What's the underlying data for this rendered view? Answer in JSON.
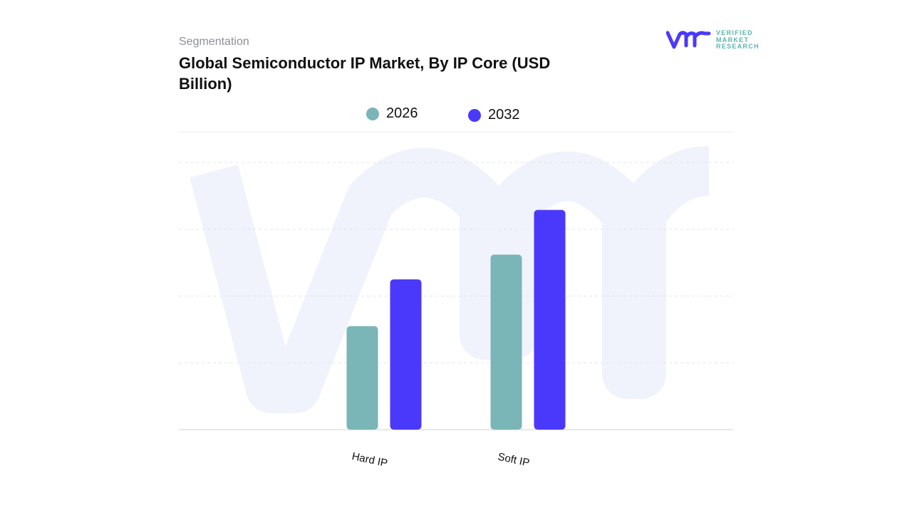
{
  "header": {
    "segment_label": "Segmentation",
    "title": "Global Semiconductor IP Market, By IP Core (USD Billion)"
  },
  "logo": {
    "lines": [
      "VERIFIED",
      "MARKET",
      "RESEARCH"
    ],
    "mark": "vmr"
  },
  "colors": {
    "series_2026": "#7ab5b8",
    "series_2032": "#4b39fb",
    "watermark": "#f0f3fb",
    "grid": "#e3e5ea"
  },
  "chart_data": {
    "type": "bar",
    "title": "Global Semiconductor IP Market, By IP Core (USD Billion)",
    "categories": [
      "Hard IP",
      "Soft IP"
    ],
    "series": [
      {
        "name": "2026",
        "values": [
          1.55,
          2.62
        ]
      },
      {
        "name": "2032",
        "values": [
          2.25,
          3.29
        ]
      }
    ],
    "ylim": [
      0,
      4
    ],
    "grid": true,
    "legend": "top-center",
    "xlabel": "",
    "ylabel": ""
  }
}
